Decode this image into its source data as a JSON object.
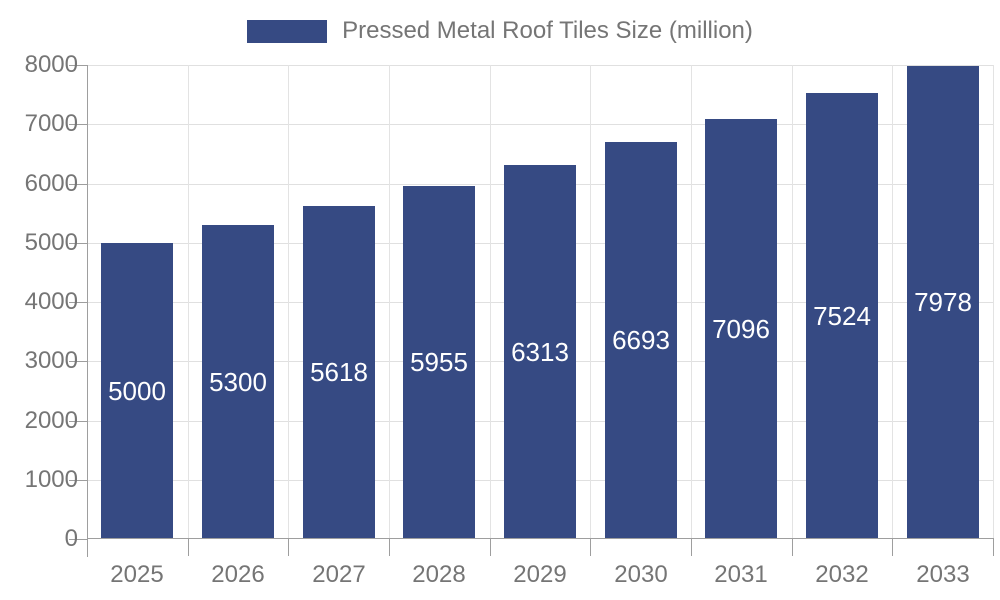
{
  "chart_data": {
    "type": "bar",
    "title": "Pressed Metal Roof Tiles Size (million)",
    "categories": [
      "2025",
      "2026",
      "2027",
      "2028",
      "2029",
      "2030",
      "2031",
      "2032",
      "2033"
    ],
    "series": [
      {
        "name": "Pressed Metal Roof Tiles Size (million)",
        "values": [
          5000,
          5300,
          5618,
          5955,
          6313,
          6693,
          7096,
          7524,
          7978
        ]
      }
    ],
    "values": [
      5000,
      5300,
      5618,
      5955,
      6313,
      6693,
      7096,
      7524,
      7978
    ],
    "bar_value_labels": [
      "5000",
      "5300",
      "5618",
      "5955",
      "6313",
      "6693",
      "7096",
      "7524",
      "7978"
    ],
    "xlabel": "",
    "ylabel": "",
    "ylim": [
      0,
      8000
    ],
    "yticks": [
      0,
      1000,
      2000,
      3000,
      4000,
      5000,
      6000,
      7000,
      8000
    ],
    "ytick_labels": [
      "0",
      "1000",
      "2000",
      "3000",
      "4000",
      "5000",
      "6000",
      "7000",
      "8000"
    ],
    "grid": true,
    "legend_position": "top-center"
  },
  "legend": {
    "label": "Pressed Metal Roof Tiles Size (million)"
  },
  "colors": {
    "bar": "#364A83",
    "bar_label_text": "#FFFFFF",
    "axis_text": "#757575",
    "grid_line_h": "#E0E0E0",
    "grid_line_v": "#E3E3E3",
    "axis_line": "#9E9E9E",
    "background": "#FFFFFF"
  }
}
